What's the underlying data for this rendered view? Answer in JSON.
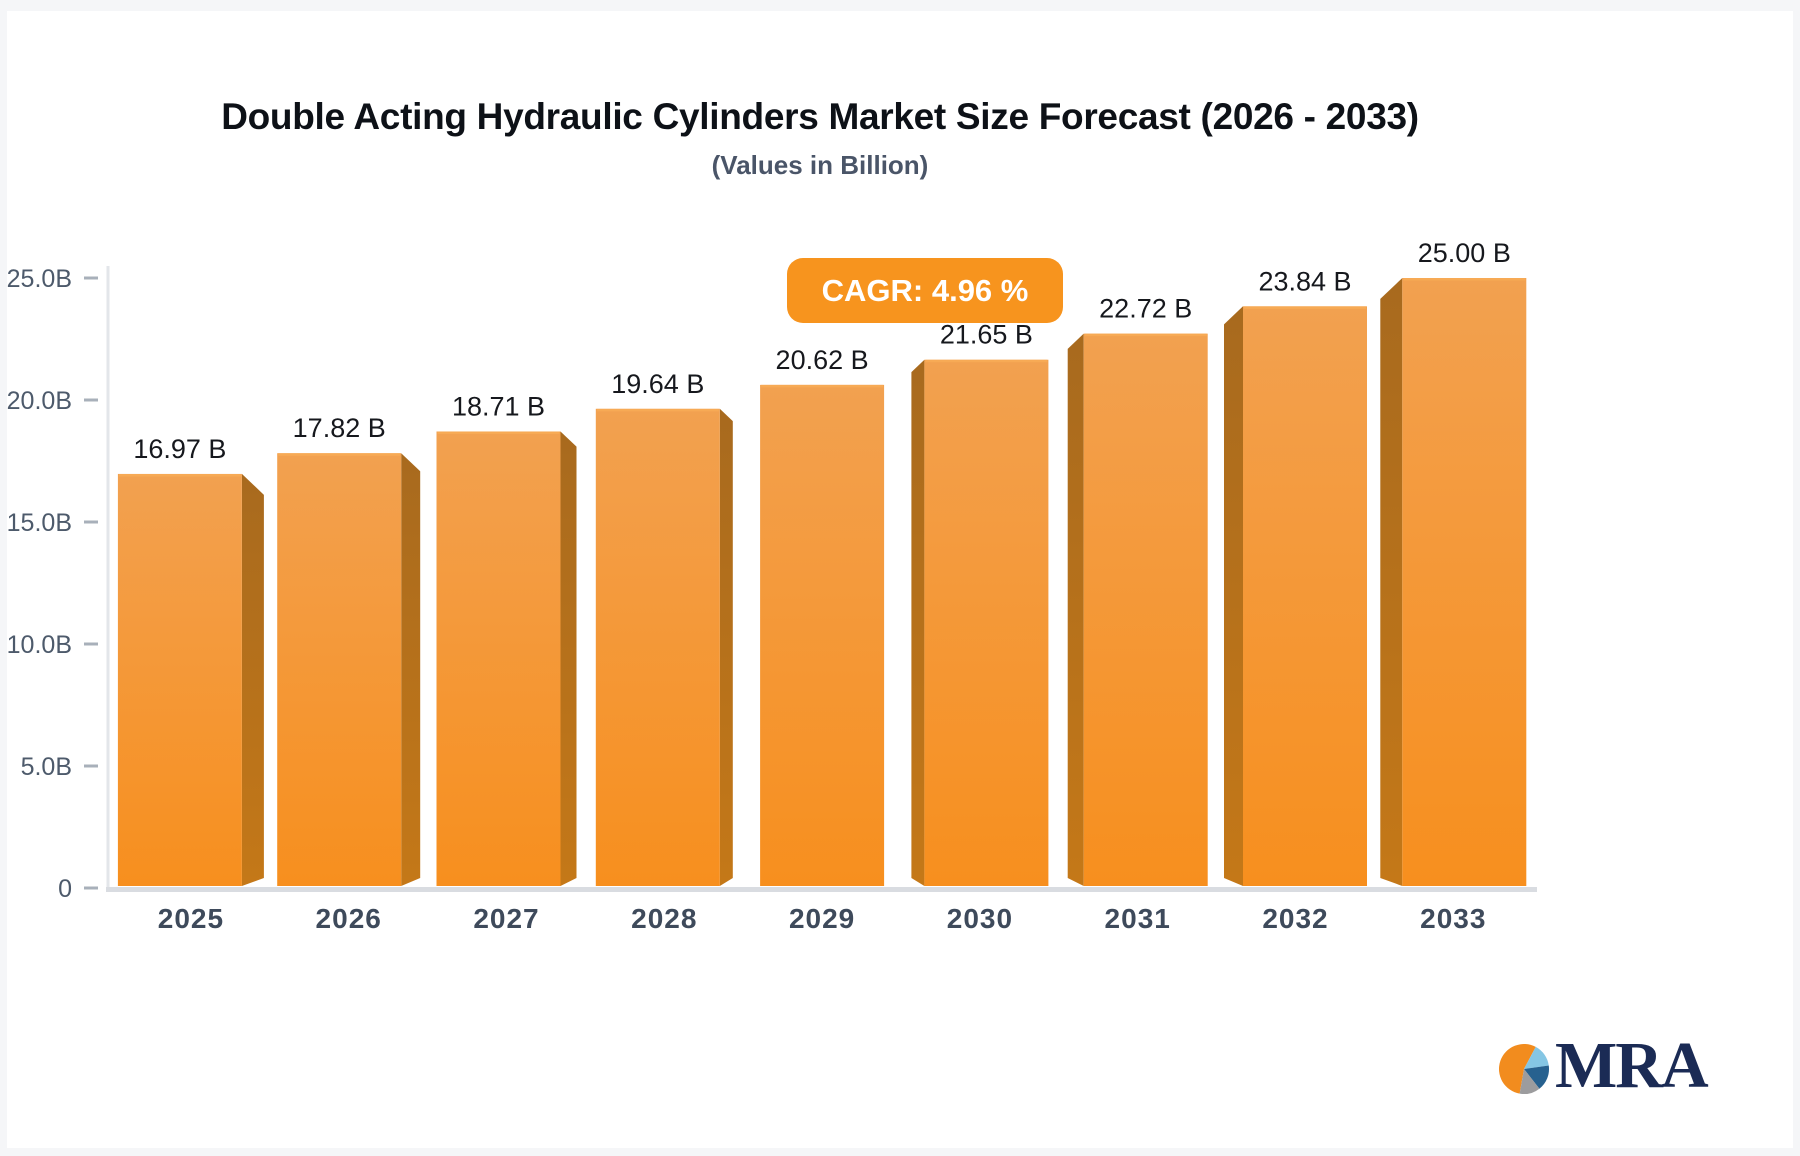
{
  "page": {
    "title": "Double Acting Hydraulic Cylinders Market Size Forecast (2026 - 2033)",
    "subtitle": "(Values in Billion)",
    "cagr_badge": "CAGR: 4.96 %"
  },
  "chart_data": {
    "type": "bar",
    "title": "Double Acting Hydraulic Cylinders Market Size Forecast (2026 - 2033)",
    "subtitle": "(Values in Billion)",
    "categories": [
      "2025",
      "2026",
      "2027",
      "2028",
      "2029",
      "2030",
      "2031",
      "2032",
      "2033"
    ],
    "values": [
      16.97,
      17.82,
      18.71,
      19.64,
      20.62,
      21.65,
      22.72,
      23.84,
      25.0
    ],
    "value_labels": [
      "16.97 B",
      "17.82 B",
      "18.71 B",
      "19.64 B",
      "20.62 B",
      "21.65 B",
      "22.72 B",
      "23.84 B",
      "25.00 B"
    ],
    "xlabel": "",
    "ylabel": "",
    "ylim": [
      0,
      25
    ],
    "yticks": [
      0,
      5,
      10,
      15,
      20,
      25
    ],
    "ytick_labels": [
      "0",
      "5.0B",
      "10.0B",
      "15.0B",
      "20.0B",
      "25.0B"
    ],
    "grid": false,
    "legend": "none",
    "annotations": [
      "CAGR: 4.96 %"
    ],
    "bar_style": "3d-perspective-orange"
  },
  "logo": {
    "text": "MRA"
  },
  "colors": {
    "accent": "#F7941E",
    "bar_front_top": "#F2A150",
    "bar_front_bottom": "#F78F1E",
    "bar_side_top": "#A86A1E",
    "bar_side_bottom": "#C47818",
    "bar_top_highlight": "#F8AC57",
    "axis_line": "#E3E6EA",
    "baseline": "#D9DCE1",
    "tick_dash": "#A8B0BA",
    "ytick_label": "#4D5A6B",
    "x_label": "#3E4A5B",
    "value_label": "#16181D",
    "title": "#0D1117",
    "subtitle": "#4A5568",
    "badge_text": "#FFFFFF",
    "card_background": "#FFFFFF",
    "page_edge": "#F5F6F8",
    "logo_orange": "#F28C1E",
    "logo_blue": "#85C6E4",
    "logo_navy": "#27618F",
    "logo_gray": "#9C9C9E",
    "logo_text": "#1B2B55"
  }
}
